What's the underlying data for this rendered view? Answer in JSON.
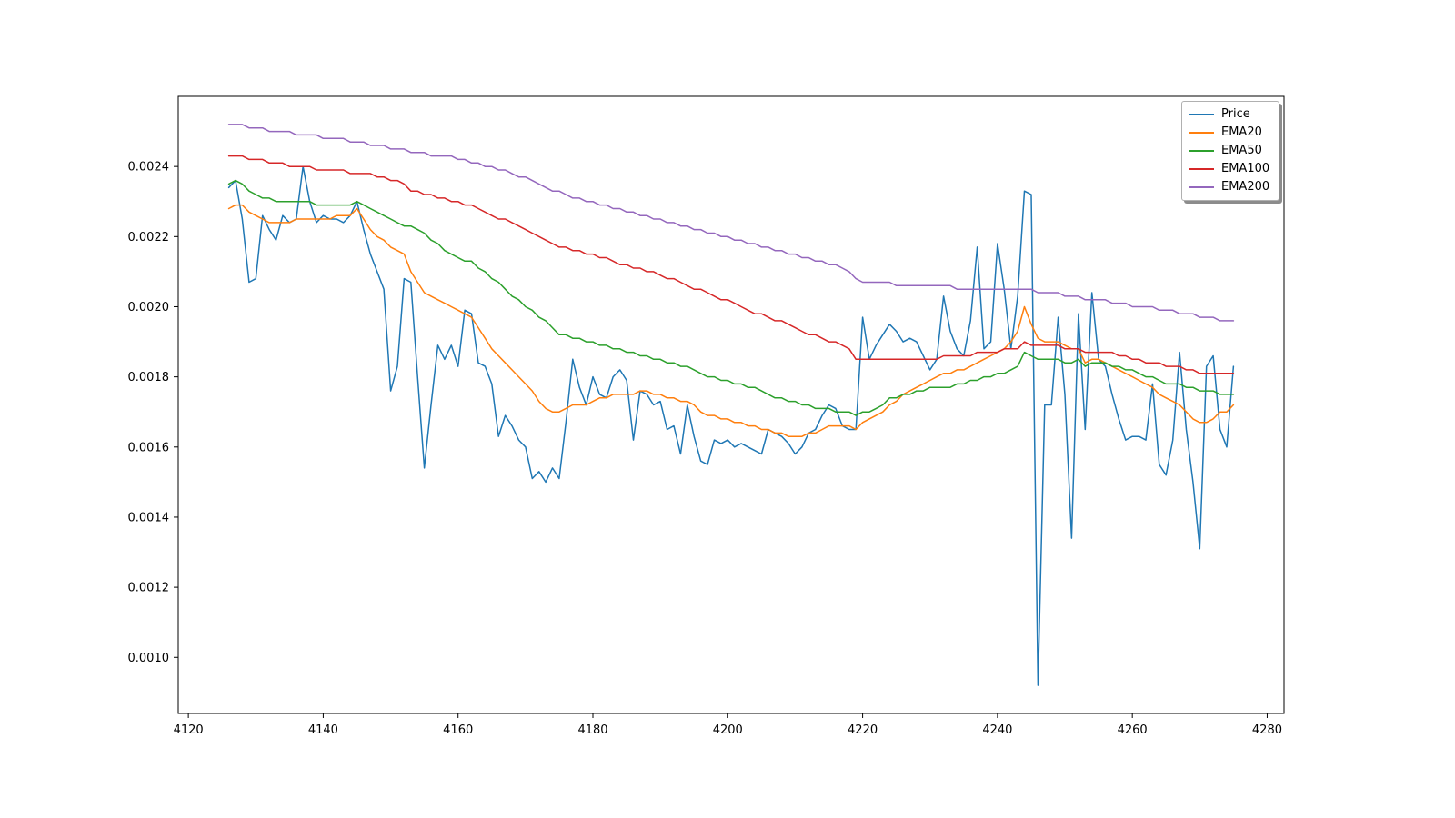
{
  "colors": {
    "background": "#ffffff",
    "axes_edge": "#000000",
    "tick_text": "#000000",
    "legend_border": "#b0b0b0"
  },
  "chart_data": {
    "type": "line",
    "title": "",
    "xlabel": "",
    "ylabel": "",
    "grid": false,
    "legend_position": "upper right",
    "xlim": [
      4118.5,
      4282.5
    ],
    "ylim": [
      0.00084,
      0.0026
    ],
    "x_ticks": [
      4120,
      4140,
      4160,
      4180,
      4200,
      4220,
      4240,
      4260,
      4280
    ],
    "y_ticks": [
      0.001,
      0.0012,
      0.0014,
      0.0016,
      0.0018,
      0.002,
      0.0022,
      0.0024
    ],
    "y_tick_labels": [
      "0.0010",
      "0.0012",
      "0.0014",
      "0.0016",
      "0.0018",
      "0.0020",
      "0.0022",
      "0.0024"
    ],
    "x": [
      4126,
      4127,
      4128,
      4129,
      4130,
      4131,
      4132,
      4133,
      4134,
      4135,
      4136,
      4137,
      4138,
      4139,
      4140,
      4141,
      4142,
      4143,
      4144,
      4145,
      4146,
      4147,
      4148,
      4149,
      4150,
      4151,
      4152,
      4153,
      4154,
      4155,
      4156,
      4157,
      4158,
      4159,
      4160,
      4161,
      4162,
      4163,
      4164,
      4165,
      4166,
      4167,
      4168,
      4169,
      4170,
      4171,
      4172,
      4173,
      4174,
      4175,
      4176,
      4177,
      4178,
      4179,
      4180,
      4181,
      4182,
      4183,
      4184,
      4185,
      4186,
      4187,
      4188,
      4189,
      4190,
      4191,
      4192,
      4193,
      4194,
      4195,
      4196,
      4197,
      4198,
      4199,
      4200,
      4201,
      4202,
      4203,
      4204,
      4205,
      4206,
      4207,
      4208,
      4209,
      4210,
      4211,
      4212,
      4213,
      4214,
      4215,
      4216,
      4217,
      4218,
      4219,
      4220,
      4221,
      4222,
      4223,
      4224,
      4225,
      4226,
      4227,
      4228,
      4229,
      4230,
      4231,
      4232,
      4233,
      4234,
      4235,
      4236,
      4237,
      4238,
      4239,
      4240,
      4241,
      4242,
      4243,
      4244,
      4245,
      4246,
      4247,
      4248,
      4249,
      4250,
      4251,
      4252,
      4253,
      4254,
      4255,
      4256,
      4257,
      4258,
      4259,
      4260,
      4261,
      4262,
      4263,
      4264,
      4265,
      4266,
      4267,
      4268,
      4269,
      4270,
      4271,
      4272,
      4273,
      4274,
      4275
    ],
    "series": [
      {
        "name": "Price",
        "color": "#1f77b4",
        "values": [
          0.00234,
          0.00236,
          0.00225,
          0.00207,
          0.00208,
          0.00226,
          0.00222,
          0.00219,
          0.00226,
          0.00224,
          0.00225,
          0.0024,
          0.0023,
          0.00224,
          0.00226,
          0.00225,
          0.00225,
          0.00224,
          0.00226,
          0.0023,
          0.00222,
          0.00215,
          0.0021,
          0.00205,
          0.00176,
          0.00183,
          0.00208,
          0.00207,
          0.0018,
          0.00154,
          0.00172,
          0.00189,
          0.00185,
          0.00189,
          0.00183,
          0.00199,
          0.00198,
          0.00184,
          0.00183,
          0.00178,
          0.00163,
          0.00169,
          0.00166,
          0.00162,
          0.0016,
          0.00151,
          0.00153,
          0.0015,
          0.00154,
          0.00151,
          0.00167,
          0.00185,
          0.00177,
          0.00172,
          0.0018,
          0.00175,
          0.00174,
          0.0018,
          0.00182,
          0.00179,
          0.00162,
          0.00176,
          0.00175,
          0.00172,
          0.00173,
          0.00165,
          0.00166,
          0.00158,
          0.00172,
          0.00163,
          0.00156,
          0.00155,
          0.00162,
          0.00161,
          0.00162,
          0.0016,
          0.00161,
          0.0016,
          0.00159,
          0.00158,
          0.00165,
          0.00164,
          0.00163,
          0.00161,
          0.00158,
          0.0016,
          0.00164,
          0.00165,
          0.00169,
          0.00172,
          0.00171,
          0.00166,
          0.00165,
          0.00165,
          0.00197,
          0.00185,
          0.00189,
          0.00192,
          0.00195,
          0.00193,
          0.0019,
          0.00191,
          0.0019,
          0.00186,
          0.00182,
          0.00185,
          0.00203,
          0.00193,
          0.00188,
          0.00186,
          0.00196,
          0.00217,
          0.00188,
          0.0019,
          0.00218,
          0.00205,
          0.00188,
          0.00203,
          0.00233,
          0.00232,
          0.00092,
          0.00172,
          0.00172,
          0.00197,
          0.00175,
          0.00134,
          0.00198,
          0.00165,
          0.00204,
          0.00185,
          0.00183,
          0.00175,
          0.00168,
          0.00162,
          0.00163,
          0.00163,
          0.00162,
          0.00178,
          0.00155,
          0.00152,
          0.00162,
          0.00187,
          0.00165,
          0.0015,
          0.00131,
          0.00183,
          0.00186,
          0.00165,
          0.0016,
          0.00183
        ]
      },
      {
        "name": "EMA20",
        "color": "#ff7f0e",
        "values": [
          0.00228,
          0.00229,
          0.00229,
          0.00227,
          0.00226,
          0.00225,
          0.00224,
          0.00224,
          0.00224,
          0.00224,
          0.00225,
          0.00225,
          0.00225,
          0.00225,
          0.00225,
          0.00225,
          0.00226,
          0.00226,
          0.00226,
          0.00228,
          0.00225,
          0.00222,
          0.0022,
          0.00219,
          0.00217,
          0.00216,
          0.00215,
          0.0021,
          0.00207,
          0.00204,
          0.00203,
          0.00202,
          0.00201,
          0.002,
          0.00199,
          0.00198,
          0.00197,
          0.00194,
          0.00191,
          0.00188,
          0.00186,
          0.00184,
          0.00182,
          0.0018,
          0.00178,
          0.00176,
          0.00173,
          0.00171,
          0.0017,
          0.0017,
          0.00171,
          0.00172,
          0.00172,
          0.00172,
          0.00173,
          0.00174,
          0.00174,
          0.00175,
          0.00175,
          0.00175,
          0.00175,
          0.00176,
          0.00176,
          0.00175,
          0.00175,
          0.00174,
          0.00174,
          0.00173,
          0.00173,
          0.00172,
          0.0017,
          0.00169,
          0.00169,
          0.00168,
          0.00168,
          0.00167,
          0.00167,
          0.00166,
          0.00166,
          0.00165,
          0.00165,
          0.00164,
          0.00164,
          0.00163,
          0.00163,
          0.00163,
          0.00164,
          0.00164,
          0.00165,
          0.00166,
          0.00166,
          0.00166,
          0.00166,
          0.00165,
          0.00167,
          0.00168,
          0.00169,
          0.0017,
          0.00172,
          0.00173,
          0.00175,
          0.00176,
          0.00177,
          0.00178,
          0.00179,
          0.0018,
          0.00181,
          0.00181,
          0.00182,
          0.00182,
          0.00183,
          0.00184,
          0.00185,
          0.00186,
          0.00187,
          0.00188,
          0.0019,
          0.00193,
          0.002,
          0.00195,
          0.00191,
          0.0019,
          0.0019,
          0.0019,
          0.00189,
          0.00188,
          0.00188,
          0.00184,
          0.00185,
          0.00185,
          0.00184,
          0.00183,
          0.00182,
          0.00181,
          0.0018,
          0.00179,
          0.00178,
          0.00177,
          0.00175,
          0.00174,
          0.00173,
          0.00172,
          0.0017,
          0.00168,
          0.00167,
          0.00167,
          0.00168,
          0.0017,
          0.0017,
          0.00172
        ]
      },
      {
        "name": "EMA50",
        "color": "#2ca02c",
        "values": [
          0.00235,
          0.00236,
          0.00235,
          0.00233,
          0.00232,
          0.00231,
          0.00231,
          0.0023,
          0.0023,
          0.0023,
          0.0023,
          0.0023,
          0.0023,
          0.00229,
          0.00229,
          0.00229,
          0.00229,
          0.00229,
          0.00229,
          0.0023,
          0.00229,
          0.00228,
          0.00227,
          0.00226,
          0.00225,
          0.00224,
          0.00223,
          0.00223,
          0.00222,
          0.00221,
          0.00219,
          0.00218,
          0.00216,
          0.00215,
          0.00214,
          0.00213,
          0.00213,
          0.00211,
          0.0021,
          0.00208,
          0.00207,
          0.00205,
          0.00203,
          0.00202,
          0.002,
          0.00199,
          0.00197,
          0.00196,
          0.00194,
          0.00192,
          0.00192,
          0.00191,
          0.00191,
          0.0019,
          0.0019,
          0.00189,
          0.00189,
          0.00188,
          0.00188,
          0.00187,
          0.00187,
          0.00186,
          0.00186,
          0.00185,
          0.00185,
          0.00184,
          0.00184,
          0.00183,
          0.00183,
          0.00182,
          0.00181,
          0.0018,
          0.0018,
          0.00179,
          0.00179,
          0.00178,
          0.00178,
          0.00177,
          0.00177,
          0.00176,
          0.00175,
          0.00174,
          0.00174,
          0.00173,
          0.00173,
          0.00172,
          0.00172,
          0.00171,
          0.00171,
          0.00171,
          0.0017,
          0.0017,
          0.0017,
          0.00169,
          0.0017,
          0.0017,
          0.00171,
          0.00172,
          0.00174,
          0.00174,
          0.00175,
          0.00175,
          0.00176,
          0.00176,
          0.00177,
          0.00177,
          0.00177,
          0.00177,
          0.00178,
          0.00178,
          0.00179,
          0.00179,
          0.0018,
          0.0018,
          0.00181,
          0.00181,
          0.00182,
          0.00183,
          0.00187,
          0.00186,
          0.00185,
          0.00185,
          0.00185,
          0.00185,
          0.00184,
          0.00184,
          0.00185,
          0.00183,
          0.00184,
          0.00184,
          0.00184,
          0.00183,
          0.00183,
          0.00182,
          0.00182,
          0.00181,
          0.0018,
          0.0018,
          0.00179,
          0.00178,
          0.00178,
          0.00178,
          0.00177,
          0.00177,
          0.00176,
          0.00176,
          0.00176,
          0.00175,
          0.00175,
          0.00175
        ]
      },
      {
        "name": "EMA100",
        "color": "#d62728",
        "values": [
          0.00243,
          0.00243,
          0.00243,
          0.00242,
          0.00242,
          0.00242,
          0.00241,
          0.00241,
          0.00241,
          0.0024,
          0.0024,
          0.0024,
          0.0024,
          0.00239,
          0.00239,
          0.00239,
          0.00239,
          0.00239,
          0.00238,
          0.00238,
          0.00238,
          0.00238,
          0.00237,
          0.00237,
          0.00236,
          0.00236,
          0.00235,
          0.00233,
          0.00233,
          0.00232,
          0.00232,
          0.00231,
          0.00231,
          0.0023,
          0.0023,
          0.00229,
          0.00229,
          0.00228,
          0.00227,
          0.00226,
          0.00225,
          0.00225,
          0.00224,
          0.00223,
          0.00222,
          0.00221,
          0.0022,
          0.00219,
          0.00218,
          0.00217,
          0.00217,
          0.00216,
          0.00216,
          0.00215,
          0.00215,
          0.00214,
          0.00214,
          0.00213,
          0.00212,
          0.00212,
          0.00211,
          0.00211,
          0.0021,
          0.0021,
          0.00209,
          0.00208,
          0.00208,
          0.00207,
          0.00206,
          0.00205,
          0.00205,
          0.00204,
          0.00203,
          0.00202,
          0.00202,
          0.00201,
          0.002,
          0.00199,
          0.00198,
          0.00198,
          0.00197,
          0.00196,
          0.00196,
          0.00195,
          0.00194,
          0.00193,
          0.00192,
          0.00192,
          0.00191,
          0.0019,
          0.0019,
          0.00189,
          0.00188,
          0.00185,
          0.00185,
          0.00185,
          0.00185,
          0.00185,
          0.00185,
          0.00185,
          0.00185,
          0.00185,
          0.00185,
          0.00185,
          0.00185,
          0.00185,
          0.00186,
          0.00186,
          0.00186,
          0.00186,
          0.00186,
          0.00187,
          0.00187,
          0.00187,
          0.00187,
          0.00188,
          0.00188,
          0.00188,
          0.0019,
          0.00189,
          0.00189,
          0.00189,
          0.00189,
          0.00189,
          0.00188,
          0.00188,
          0.00188,
          0.00187,
          0.00187,
          0.00187,
          0.00187,
          0.00187,
          0.00186,
          0.00186,
          0.00185,
          0.00185,
          0.00184,
          0.00184,
          0.00184,
          0.00183,
          0.00183,
          0.00183,
          0.00182,
          0.00182,
          0.00181,
          0.00181,
          0.00181,
          0.00181,
          0.00181,
          0.00181
        ]
      },
      {
        "name": "EMA200",
        "color": "#9467bd",
        "values": [
          0.00252,
          0.00252,
          0.00252,
          0.00251,
          0.00251,
          0.00251,
          0.0025,
          0.0025,
          0.0025,
          0.0025,
          0.00249,
          0.00249,
          0.00249,
          0.00249,
          0.00248,
          0.00248,
          0.00248,
          0.00248,
          0.00247,
          0.00247,
          0.00247,
          0.00246,
          0.00246,
          0.00246,
          0.00245,
          0.00245,
          0.00245,
          0.00244,
          0.00244,
          0.00244,
          0.00243,
          0.00243,
          0.00243,
          0.00243,
          0.00242,
          0.00242,
          0.00241,
          0.00241,
          0.0024,
          0.0024,
          0.00239,
          0.00239,
          0.00238,
          0.00237,
          0.00237,
          0.00236,
          0.00235,
          0.00234,
          0.00233,
          0.00233,
          0.00232,
          0.00231,
          0.00231,
          0.0023,
          0.0023,
          0.00229,
          0.00229,
          0.00228,
          0.00228,
          0.00227,
          0.00227,
          0.00226,
          0.00226,
          0.00225,
          0.00225,
          0.00224,
          0.00224,
          0.00223,
          0.00223,
          0.00222,
          0.00222,
          0.00221,
          0.00221,
          0.0022,
          0.0022,
          0.00219,
          0.00219,
          0.00218,
          0.00218,
          0.00217,
          0.00217,
          0.00216,
          0.00216,
          0.00215,
          0.00215,
          0.00214,
          0.00214,
          0.00213,
          0.00213,
          0.00212,
          0.00212,
          0.00211,
          0.0021,
          0.00208,
          0.00207,
          0.00207,
          0.00207,
          0.00207,
          0.00207,
          0.00206,
          0.00206,
          0.00206,
          0.00206,
          0.00206,
          0.00206,
          0.00206,
          0.00206,
          0.00206,
          0.00205,
          0.00205,
          0.00205,
          0.00205,
          0.00205,
          0.00205,
          0.00205,
          0.00205,
          0.00205,
          0.00205,
          0.00205,
          0.00205,
          0.00204,
          0.00204,
          0.00204,
          0.00204,
          0.00203,
          0.00203,
          0.00203,
          0.00202,
          0.00202,
          0.00202,
          0.00202,
          0.00201,
          0.00201,
          0.00201,
          0.002,
          0.002,
          0.002,
          0.002,
          0.00199,
          0.00199,
          0.00199,
          0.00198,
          0.00198,
          0.00198,
          0.00197,
          0.00197,
          0.00197,
          0.00196,
          0.00196,
          0.00196
        ]
      }
    ]
  }
}
